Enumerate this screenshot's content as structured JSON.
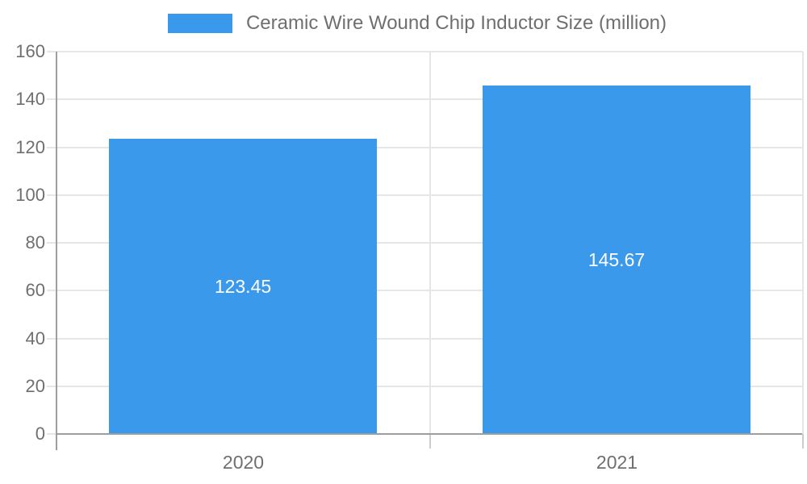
{
  "chart_data": {
    "type": "bar",
    "title": "Ceramic Wire Wound Chip Inductor Size (million)",
    "categories": [
      "2020",
      "2021"
    ],
    "values": [
      123.45,
      145.67
    ],
    "value_labels": [
      "123.45",
      "145.67"
    ],
    "series_name": "Ceramic Wire Wound Chip Inductor Size (million)",
    "xlabel": "",
    "ylabel": "",
    "ylim": [
      0,
      160
    ],
    "yticks": [
      0,
      20,
      40,
      60,
      80,
      100,
      120,
      140,
      160
    ],
    "grid": true,
    "legend_position": "top",
    "colors": {
      "bar": "#3B99EC",
      "bar_value_text": "#FFFFFF",
      "axis_text": "#6F6F6F",
      "legend_text": "#6F6F6F",
      "gridline": "#E6E6E6",
      "axis_line": "#9E9E9E",
      "boundary_tick": "#CCCCCC"
    }
  }
}
